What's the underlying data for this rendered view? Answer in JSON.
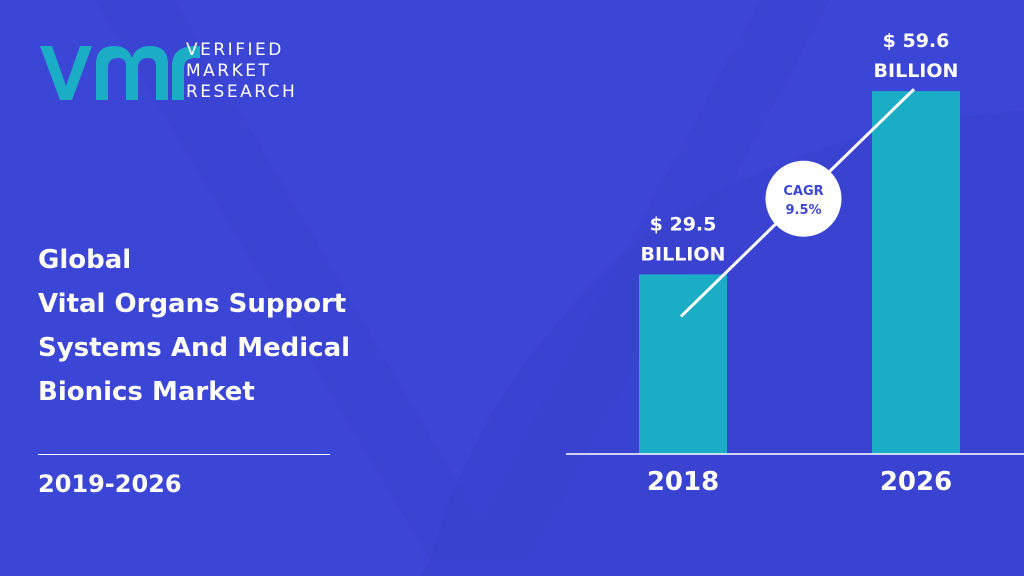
{
  "brand": {
    "name_lines": [
      "VERIFIED",
      "MARKET",
      "RESEARCH"
    ],
    "logo_mark": "vmr-logo"
  },
  "heading": {
    "lines": [
      "Global",
      "Vital Organs Support",
      "Systems And Medical",
      "Bionics Market"
    ]
  },
  "period": "2019-2026",
  "colors": {
    "background": "#3c46d6",
    "bar": "#1cadc6",
    "logo": "#1cadc6",
    "text": "#ffffff"
  },
  "chart_data": {
    "type": "bar",
    "categories": [
      "2018",
      "2026"
    ],
    "values": [
      29.5,
      59.6
    ],
    "value_labels": [
      [
        "$ 29.5",
        "BILLION"
      ],
      [
        "$ 59.6",
        "BILLION"
      ]
    ],
    "unit": "USD billion",
    "ylim": [
      0,
      68
    ],
    "grid": false,
    "cagr": {
      "label": "CAGR",
      "value": "9.5%"
    }
  }
}
